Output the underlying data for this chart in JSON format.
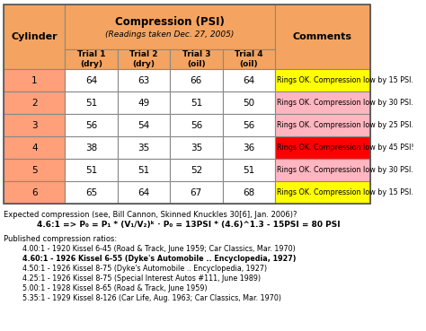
{
  "header_bg": "#F4A460",
  "header_text_color": "#000000",
  "title_line1": "Compression (PSI)",
  "title_line2": "(Readings taken Dec. 27, 2005)",
  "col_cylinder": "Cylinder",
  "col_comments": "Comments",
  "trial_headers": [
    "Trial 1\n(dry)",
    "Trial 2\n(dry)",
    "Trial 3\n(oil)",
    "Trial 4\n(oil)"
  ],
  "rows": [
    {
      "cyl": 1,
      "vals": [
        64,
        63,
        66,
        64
      ],
      "comment": "Rings OK. Compression low by 15 PSI.",
      "row_bg": "#FFA07A",
      "comment_bg": "#FFFF00"
    },
    {
      "cyl": 2,
      "vals": [
        51,
        49,
        51,
        50
      ],
      "comment": "Rings OK. Compression low by 30 PSI.",
      "row_bg": "#FFA07A",
      "comment_bg": "#FFB6C1"
    },
    {
      "cyl": 3,
      "vals": [
        56,
        54,
        56,
        56
      ],
      "comment": "Rings OK. Compression low by 25 PSI.",
      "row_bg": "#FFA07A",
      "comment_bg": "#FFB6C1"
    },
    {
      "cyl": 4,
      "vals": [
        38,
        35,
        35,
        36
      ],
      "comment": "Rings OK. Compression low by 45 PSI!",
      "row_bg": "#FFA07A",
      "comment_bg": "#FF0000"
    },
    {
      "cyl": 5,
      "vals": [
        51,
        51,
        52,
        51
      ],
      "comment": "Rings OK. Compression low by 30 PSI.",
      "row_bg": "#FFA07A",
      "comment_bg": "#FFB6C1"
    },
    {
      "cyl": 6,
      "vals": [
        65,
        64,
        67,
        68
      ],
      "comment": "Rings OK. Compression low by 15 PSI.",
      "row_bg": "#FFA07A",
      "comment_bg": "#FFFF00"
    }
  ],
  "notes_line1": "Expected compression (see, Bill Cannon, Skinned Knuckles 30[6], Jan. 2006)?",
  "notes_line2": "4.6:1 => P₀ = P₁ * (V₁/V₂)ᵏ · P₀ = 13PSI * (4.6)^1.3 - 15PSI = 80 PSI",
  "published_header": "Published compression ratios:",
  "published_lines": [
    {
      "text": "4.00:1 - 1920 Kissel 6-45 (Road & Track, June 1959; Car Classics, Mar. 1970)",
      "bold": false
    },
    {
      "text": "4.60:1 - 1926 Kissel 6-55 (Dyke's Automobile .. Encyclopedia, 1927)",
      "bold": true
    },
    {
      "text": "4.50:1 - 1926 Kissel 8-75 (Dyke's Automobile .. Encyclopedia, 1927)",
      "bold": false
    },
    {
      "text": "4.25:1 - 1926 Kissel 8-75 (Special Interest Autos #111, June 1989)",
      "bold": false
    },
    {
      "text": "5.00:1 - 1928 Kissel 8-65 (Road & Track, June 1959)",
      "bold": false
    },
    {
      "text": "5.35:1 - 1929 Kissel 8-126 (Car Life, Aug. 1963; Car Classics, Mar. 1970)",
      "bold": false
    }
  ],
  "bg_color": "#FFFFFF",
  "outer_border_color": "#888888"
}
